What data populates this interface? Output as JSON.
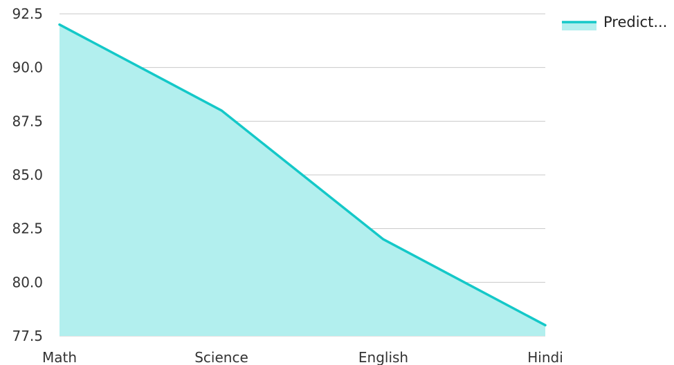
{
  "chart_data": {
    "type": "area",
    "categories": [
      "Math",
      "Science",
      "English",
      "Hindi"
    ],
    "series": [
      {
        "name": "Predict...",
        "values": [
          92,
          88,
          82,
          78
        ],
        "line_color": "#14C8C8",
        "fill_color": "#B2EFEE"
      }
    ],
    "y_ticks": [
      "77.5",
      "80.0",
      "82.5",
      "85.0",
      "87.5",
      "90.0",
      "92.5"
    ],
    "ylim": [
      77.5,
      92.5
    ],
    "grid": true,
    "grid_color": "#C8C8C8",
    "legend_position": "top-right"
  }
}
